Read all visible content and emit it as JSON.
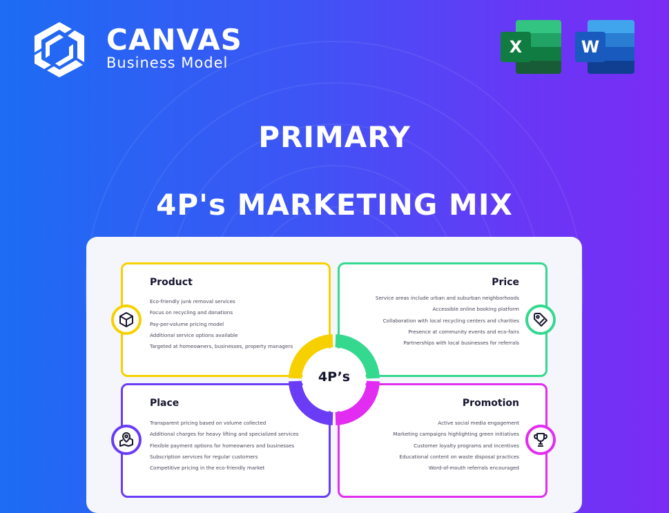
{
  "brand": {
    "name": "CANVAS",
    "subtitle": "Business Model"
  },
  "apps": [
    {
      "name": "Excel",
      "letter": "X"
    },
    {
      "name": "Word",
      "letter": "W"
    }
  ],
  "heading": {
    "line1": "PRIMARY",
    "line2": "4P's MARKETING MIX"
  },
  "center_label": "4P’s",
  "colors": {
    "product": "#f7d000",
    "price": "#34d88f",
    "place": "#6a3cf5",
    "promotion": "#e22cf2"
  },
  "quadrants": [
    {
      "title": "Product",
      "icon": "box-icon",
      "items": [
        "Eco-friendly junk removal services",
        "Focus on recycling and donations",
        "Pay-per-volume pricing model",
        "Additional service options available",
        "Targeted at homeowners, businesses, property managers"
      ]
    },
    {
      "title": "Price",
      "icon": "price-tag-icon",
      "items": [
        "Service areas include urban and suburban neighborhoods",
        "Accessible online booking platform",
        "Collaboration with local recycling centers and charities",
        "Presence at community events and eco-fairs",
        "Partnerships with local businesses for referrals"
      ]
    },
    {
      "title": "Place",
      "icon": "map-pin-icon",
      "items": [
        "Transparent pricing based on volume collected",
        "Additional charges for heavy lifting and specialized services",
        "Flexible payment options for homeowners and businesses",
        "Subscription services for regular customers",
        "Competitive pricing in the eco-friendly market"
      ]
    },
    {
      "title": "Promotion",
      "icon": "trophy-icon",
      "items": [
        "Active social media engagement",
        "Marketing campaigns highlighting green initiatives",
        "Customer loyalty programs and incentives",
        "Educational content on waste disposal practices",
        "Word-of-mouth referrals encouraged"
      ]
    }
  ]
}
